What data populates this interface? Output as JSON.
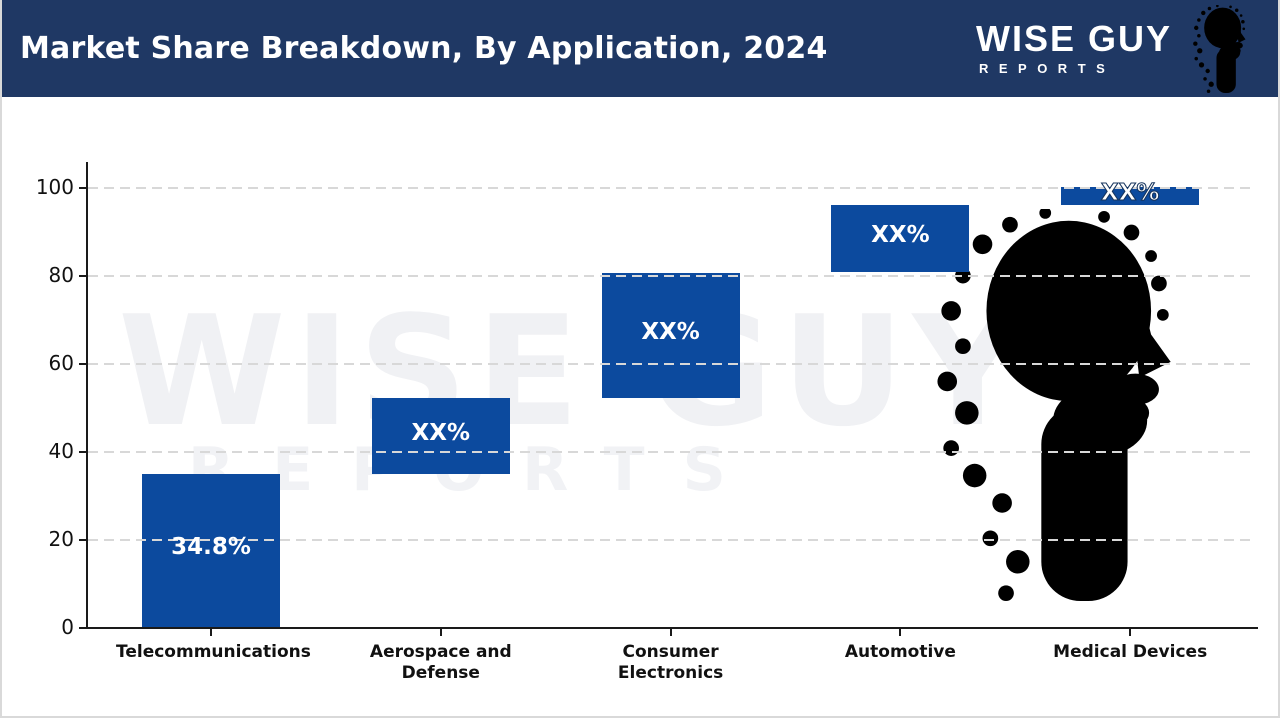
{
  "header": {
    "title": "Market Share Breakdown, By Application, 2024",
    "logo": {
      "name": "WISE GUY",
      "sub": "REPORTS"
    }
  },
  "watermark": {
    "line1": "WISE GUY",
    "line2": "REPORTS"
  },
  "colors": {
    "header_bg": "#1f3864",
    "bar": "#0c4a9e",
    "grid": "#d8d8d8",
    "axis": "#1a1a1a"
  },
  "chart_data": {
    "type": "bar",
    "subtype": "waterfall",
    "title": "Market Share Breakdown, By Application, 2024",
    "xlabel": "",
    "ylabel": "",
    "ylim": [
      0,
      105
    ],
    "yticks": [
      0,
      20,
      40,
      60,
      80,
      100
    ],
    "grid": "horizontal-dashed",
    "legend": "none",
    "categories": [
      "Telecommunications",
      "Aerospace and Defense",
      "Consumer Electronics",
      "Automotive",
      "Medical Devices"
    ],
    "segments": [
      {
        "category": "Telecommunications",
        "start": 0,
        "end": 34.8,
        "label": "34.8%"
      },
      {
        "category": "Aerospace and Defense",
        "start": 34.8,
        "end": 52.1,
        "label": "XX%"
      },
      {
        "category": "Consumer Electronics",
        "start": 52.1,
        "end": 80.5,
        "label": "XX%"
      },
      {
        "category": "Automotive",
        "start": 80.7,
        "end": 95.9,
        "label": "XX%"
      },
      {
        "category": "Medical Devices",
        "start": 95.9,
        "end": 100,
        "label": "XX%"
      }
    ]
  }
}
